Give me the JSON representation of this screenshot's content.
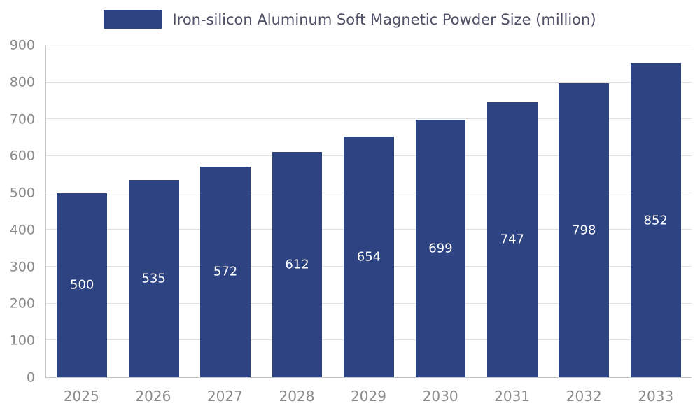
{
  "legend": {
    "title": "Iron-silicon Aluminum Soft Magnetic Powder Size (million)",
    "swatch_color": "#2e4482"
  },
  "chart_data": {
    "type": "bar",
    "categories": [
      "2025",
      "2026",
      "2027",
      "2028",
      "2029",
      "2030",
      "2031",
      "2032",
      "2033"
    ],
    "values": [
      500,
      535,
      572,
      612,
      654,
      699,
      747,
      798,
      852
    ],
    "title": "Iron-silicon Aluminum Soft Magnetic Powder Size (million)",
    "xlabel": "",
    "ylabel": "",
    "ylim": [
      0,
      900
    ],
    "ytick_step": 100,
    "bar_color": "#2e4482",
    "value_label_color": "#ffffff",
    "grid": true,
    "legend_position": "top"
  }
}
